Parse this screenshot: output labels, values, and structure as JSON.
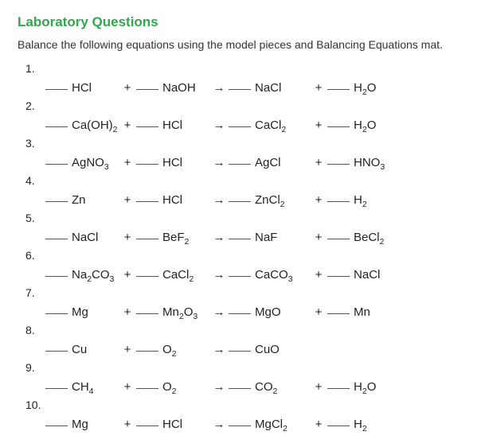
{
  "title": "Laboratory Questions",
  "instructions": "Balance the following equations using the model pieces and Balancing Equations mat.",
  "equations": [
    {
      "num": "1.",
      "r1": "HCl",
      "r2": "NaOH",
      "p1": "NaCl",
      "p2": "H<sub>2</sub>O"
    },
    {
      "num": "2.",
      "r1": "Ca(OH)<sub>2</sub>",
      "r2": "HCl",
      "p1": "CaCl<sub>2</sub>",
      "p2": "H<sub>2</sub>O"
    },
    {
      "num": "3.",
      "r1": "AgNO<sub>3</sub>",
      "r2": "HCl",
      "p1": "AgCl",
      "p2": "HNO<sub>3</sub>"
    },
    {
      "num": "4.",
      "r1": "Zn",
      "r2": "HCl",
      "p1": "ZnCl<sub>2</sub>",
      "p2": "H<sub>2</sub>"
    },
    {
      "num": "5.",
      "r1": "NaCl",
      "r2": "BeF<sub>2</sub>",
      "p1": "NaF",
      "p2": "BeCl<sub>2</sub>"
    },
    {
      "num": "6.",
      "r1": "Na<sub>2</sub>CO<sub>3</sub>",
      "r2": "CaCl<sub>2</sub>",
      "p1": "CaCO<sub>3</sub>",
      "p2": "NaCl"
    },
    {
      "num": "7.",
      "r1": "Mg",
      "r2": "Mn<sub>2</sub>O<sub>3</sub>",
      "p1": "MgO",
      "p2": "Mn"
    },
    {
      "num": "8.",
      "r1": "Cu",
      "r2": "O<sub>2</sub>",
      "p1": "CuO",
      "p2": null
    },
    {
      "num": "9.",
      "r1": "CH<sub>4</sub>",
      "r2": "O<sub>2</sub>",
      "p1": "CO<sub>2</sub>",
      "p2": "H<sub>2</sub>O"
    },
    {
      "num": "10.",
      "r1": "Mg",
      "r2": "HCl",
      "p1": "MgCl<sub>2</sub>",
      "p2": "H<sub>2</sub>"
    }
  ],
  "symbols": {
    "plus": "+",
    "arrow": "→"
  },
  "colors": {
    "title": "#2ea84a",
    "text": "#222222",
    "bg": "#ffffff",
    "underline": "#555555"
  }
}
